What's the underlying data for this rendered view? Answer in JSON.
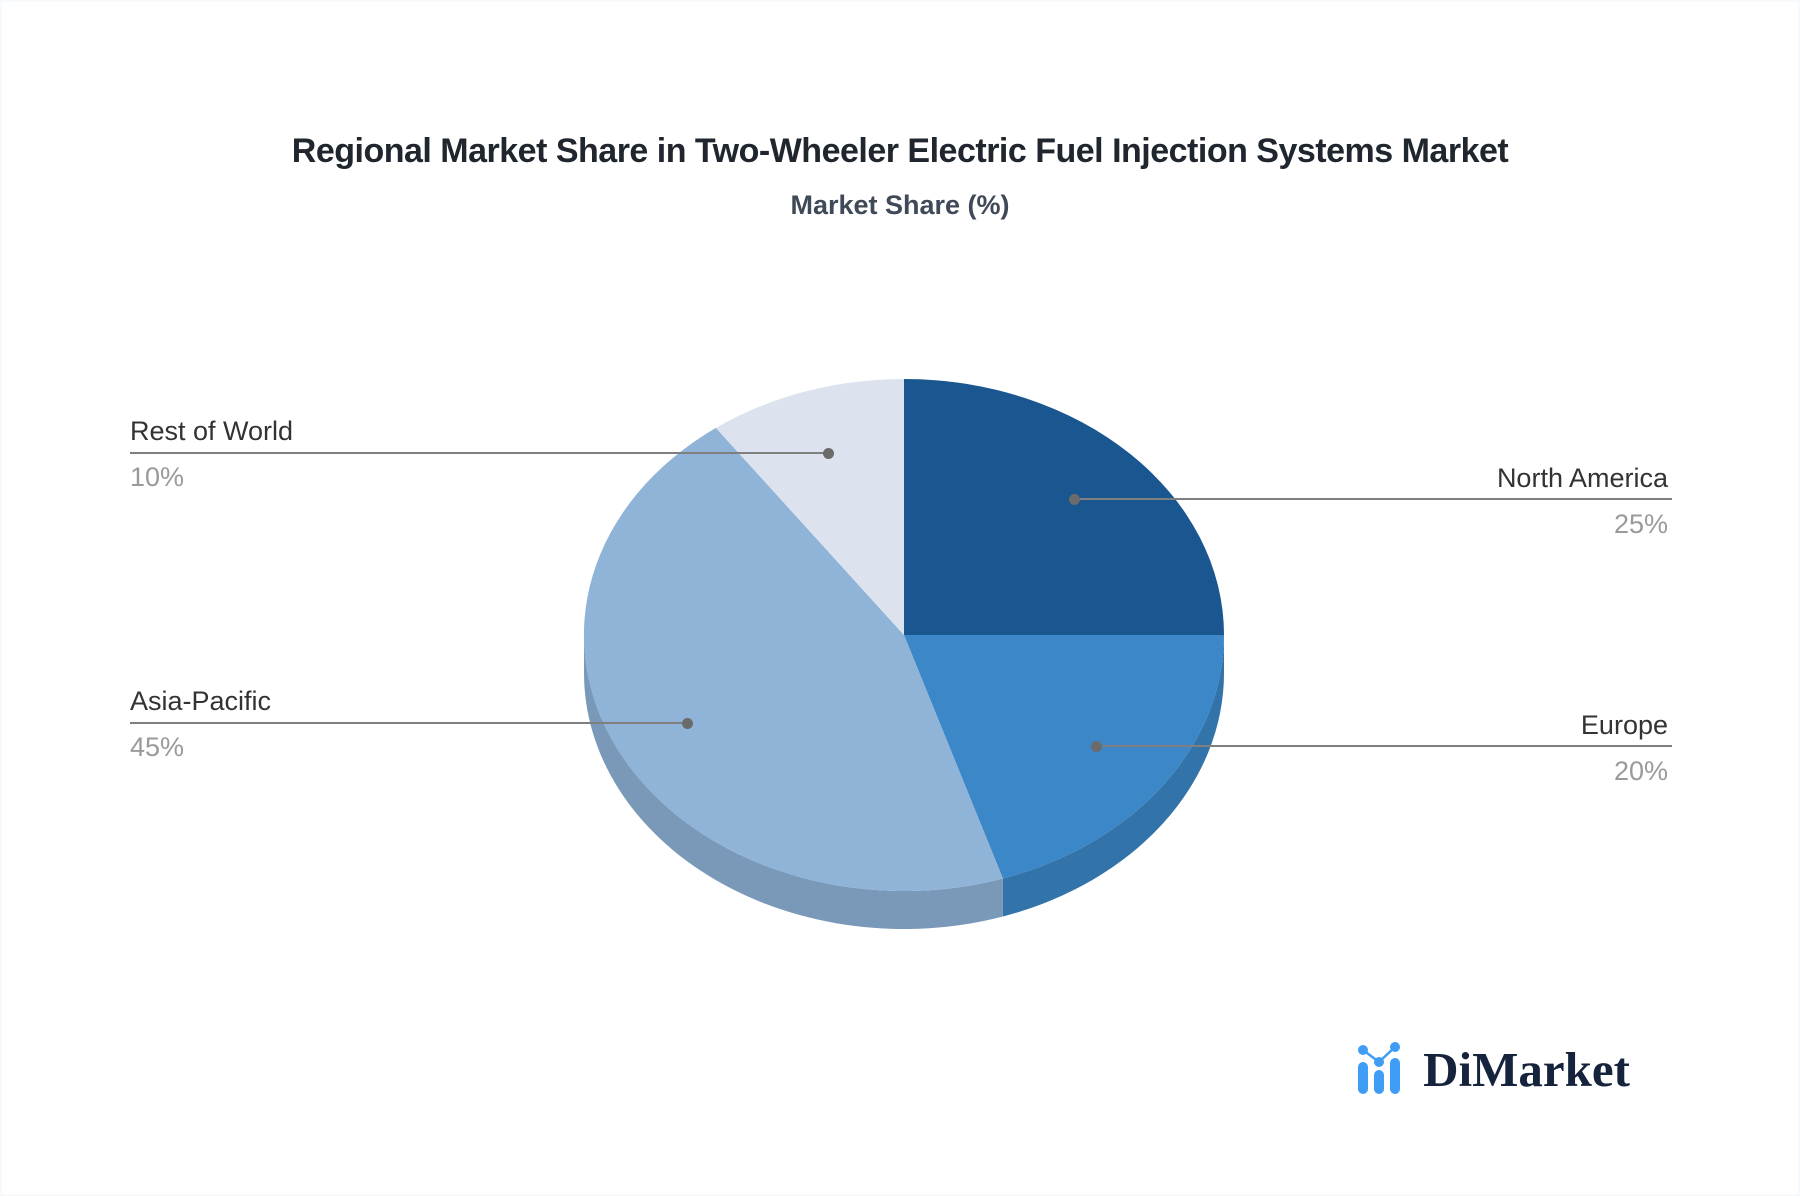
{
  "chart_data": {
    "type": "pie",
    "title": "Regional Market Share in Two-Wheeler Electric Fuel Injection Systems Market",
    "subtitle": "Market Share (%)",
    "unit": "%",
    "start_angle_deg": 0,
    "direction": "clockwise",
    "style": "3d-depth pie with callout leader lines",
    "legend_position": "callout-labels",
    "slices": [
      {
        "label": "North America",
        "value": 25,
        "display": "25%",
        "color": "#1a568f"
      },
      {
        "label": "Europe",
        "value": 20,
        "display": "20%",
        "color": "#3b87c8"
      },
      {
        "label": "Asia-Pacific",
        "value": 45,
        "display": "45%",
        "color": "#90b4d8"
      },
      {
        "label": "Rest of World",
        "value": 10,
        "display": "10%",
        "color": "#dde3ee"
      }
    ],
    "colors": {
      "leader_line": "#7f7f7f",
      "leader_dot": "#6b6b6b",
      "label_text": "#333333",
      "value_text": "#9a9a9a"
    }
  },
  "branding": {
    "name": "DiMarket",
    "icon": "bar-line-chart-icon",
    "text_color": "#16233c",
    "bar_color": "#3f9df5"
  }
}
